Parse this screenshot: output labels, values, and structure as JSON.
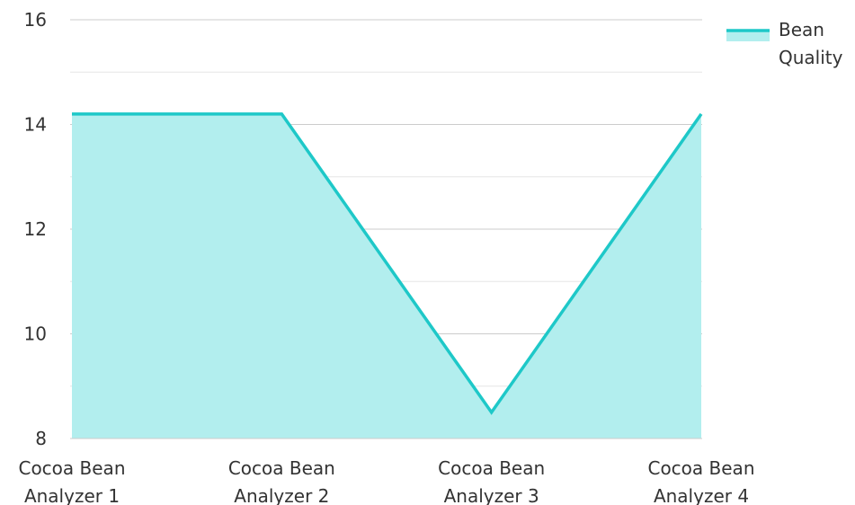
{
  "chart_data": {
    "type": "area",
    "categories": [
      "Cocoa Bean Analyzer 1",
      "Cocoa Bean Analyzer 2",
      "Cocoa Bean Analyzer 3",
      "Cocoa Bean Analyzer 4"
    ],
    "category_lines": [
      [
        "Cocoa Bean",
        "Analyzer 1"
      ],
      [
        "Cocoa Bean",
        "Analyzer 2"
      ],
      [
        "Cocoa Bean",
        "Analyzer 3"
      ],
      [
        "Cocoa Bean",
        "Analyzer 4"
      ]
    ],
    "series": [
      {
        "name": "Bean Quality",
        "name_lines": [
          "Bean",
          "Quality"
        ],
        "values": [
          14.2,
          14.2,
          8.5,
          14.2
        ],
        "line_color": "#1ec8c8",
        "fill_color": "#b2eeee"
      }
    ],
    "ylim": [
      8,
      16
    ],
    "y_ticks": [
      8,
      10,
      12,
      14,
      16
    ],
    "y_minor_ticks": [
      9,
      11,
      13,
      15
    ],
    "grid": true,
    "legend_position": "top-right",
    "title": "",
    "xlabel": "",
    "ylabel": ""
  }
}
